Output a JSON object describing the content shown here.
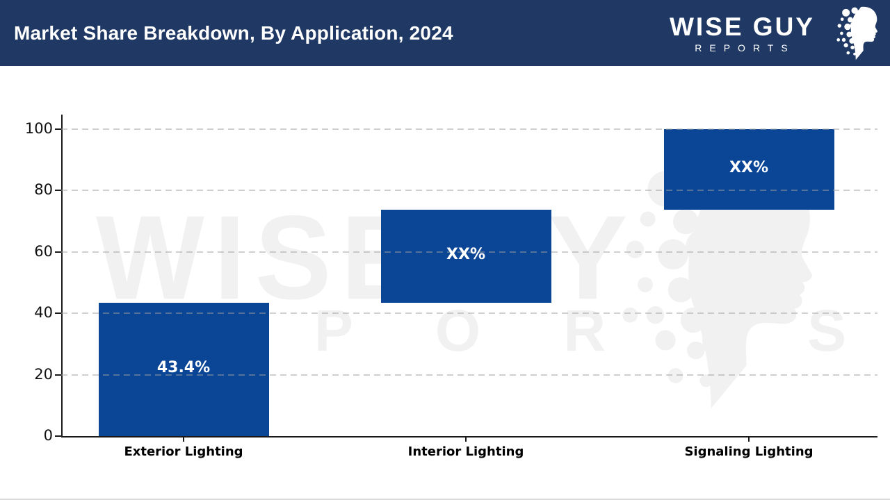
{
  "header": {
    "title": "Market Share Breakdown, By Application, 2024",
    "logo": {
      "line1": "WISE GUY",
      "line2": "REPORTS"
    }
  },
  "watermark": {
    "word1": "WISE",
    "word2": "Y",
    "word3": "P O R T S"
  },
  "chart_data": {
    "type": "bar",
    "subtype": "waterfall",
    "title": "Market Share Breakdown, By Application, 2024",
    "categories": [
      "Exterior Lighting",
      "Interior Lighting",
      "Signaling Lighting"
    ],
    "segments": [
      {
        "category": "Exterior Lighting",
        "start": 0,
        "end": 43.4,
        "label": "43.4%"
      },
      {
        "category": "Interior Lighting",
        "start": 43.4,
        "end": 73.7,
        "label": "XX%"
      },
      {
        "category": "Signaling Lighting",
        "start": 73.7,
        "end": 100,
        "label": "XX%"
      }
    ],
    "yticks": [
      0,
      20,
      40,
      60,
      80,
      100
    ],
    "ylim": [
      0,
      100
    ],
    "grid": "dashed horizontal, above bars",
    "legend": null,
    "xlabel": "",
    "ylabel": ""
  },
  "colors": {
    "header_bg": "#1f3864",
    "bar": "#0a4596",
    "bar_label": "#ffffff",
    "grid": "#c8c8c8",
    "axis": "#1a1a1a",
    "watermark": "#f1f1f2",
    "bottom_line": "#d9d9d9"
  }
}
